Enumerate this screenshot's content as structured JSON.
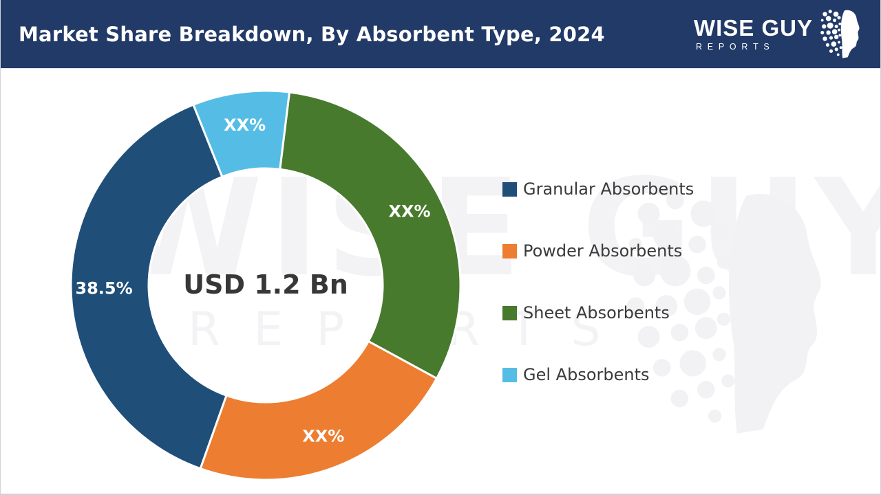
{
  "header": {
    "title": "Market Share Breakdown, By Absorbent Type, 2024",
    "bg_color": "#223a67",
    "logo_line1": "WISE GUY",
    "logo_line2": "REPORTS"
  },
  "watermark": {
    "line1": "WISE GUY",
    "line2": "REPORTS"
  },
  "chart_data": {
    "type": "pie",
    "subtype": "donut",
    "title": "Market Share Breakdown, By Absorbent Type, 2024",
    "center_text": "USD 1.2 Bn",
    "legend_position": "right",
    "start_angle_deg": 7,
    "clockwise_order": [
      2,
      1,
      0,
      3
    ],
    "series": [
      {
        "name": "Granular Absorbents",
        "display_label": "38.5%",
        "value_pct": 38.5,
        "value_masked": false,
        "color": "#1f4e79"
      },
      {
        "name": "Powder Absorbents",
        "display_label": "XX%",
        "value_pct": 22.5,
        "value_masked": true,
        "color": "#ec7d31"
      },
      {
        "name": "Sheet Absorbents",
        "display_label": "XX%",
        "value_pct": 31.0,
        "value_masked": true,
        "color": "#477a2d"
      },
      {
        "name": "Gel Absorbents",
        "display_label": "XX%",
        "value_pct": 8.0,
        "value_masked": true,
        "color": "#55bde5"
      }
    ]
  }
}
